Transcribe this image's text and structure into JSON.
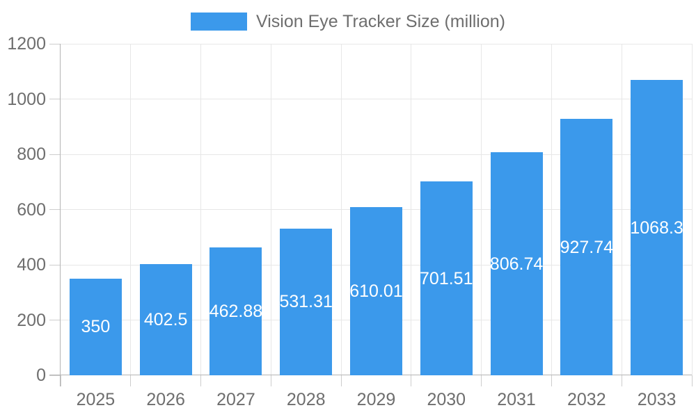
{
  "legend": {
    "label": "Vision Eye Tracker Size (million)"
  },
  "colors": {
    "bar": "#3B99EB",
    "grid": "#E7E7E7",
    "tick": "#CDCDCD",
    "axis": "#B4B4B4",
    "text": "#6E6E6E",
    "bar_label": "#FFFFFF",
    "background": "#FFFFFF"
  },
  "chart_data": {
    "type": "bar",
    "title": "Vision Eye Tracker Size (million)",
    "categories": [
      "2025",
      "2026",
      "2027",
      "2028",
      "2029",
      "2030",
      "2031",
      "2032",
      "2033"
    ],
    "values": [
      350,
      402.5,
      462.88,
      531.31,
      610.01,
      701.51,
      806.74,
      927.74,
      1068.3
    ],
    "value_labels": [
      "350",
      "402.5",
      "462.88",
      "531.31",
      "610.01",
      "701.51",
      "806.74",
      "927.74",
      "1068.3"
    ],
    "xlabel": "",
    "ylabel": "",
    "ylim": [
      0,
      1200
    ],
    "ytick_interval": 200,
    "ytick_labels": [
      "0",
      "200",
      "400",
      "600",
      "800",
      "1000",
      "1200"
    ],
    "legend_position": "top",
    "grid": true,
    "value_label_position": "inside-center",
    "value_label_color": "#FFFFFF",
    "series_color": "#3B99EB"
  }
}
